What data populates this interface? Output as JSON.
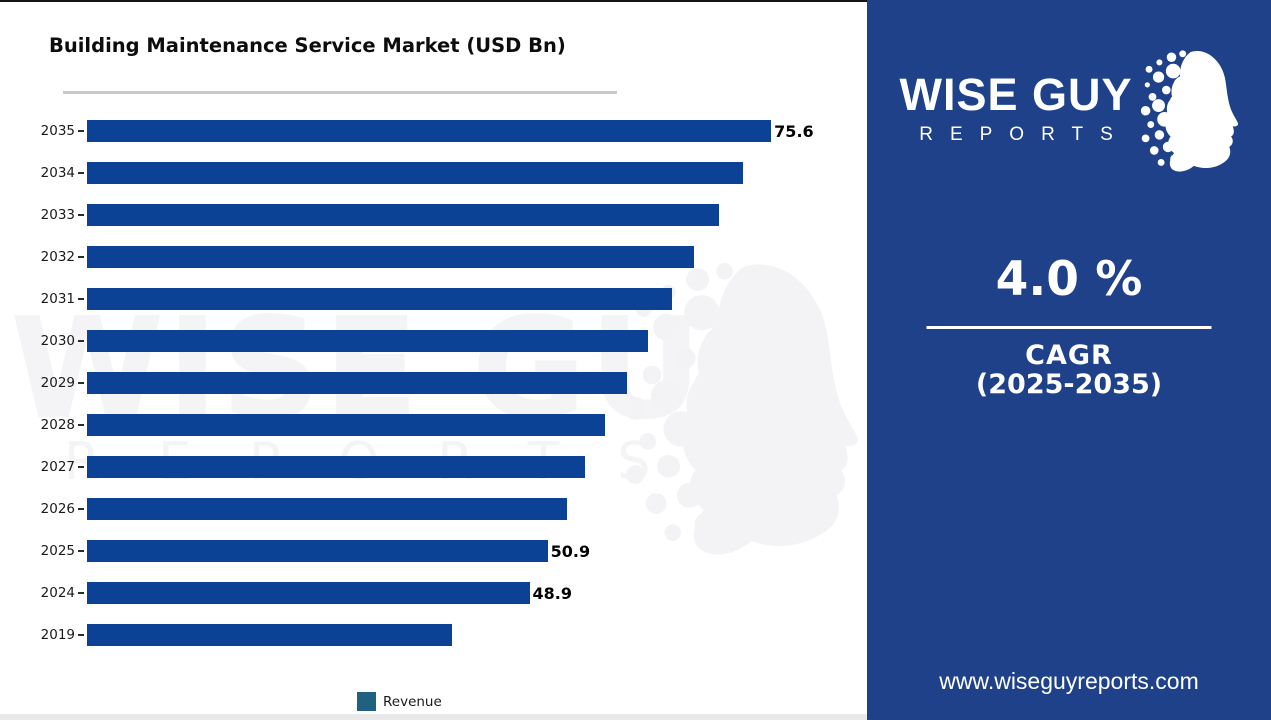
{
  "chart_data": {
    "type": "bar",
    "orientation": "horizontal",
    "title": "Building Maintenance Service Market (USD Bn)",
    "units": "USD Bn",
    "categories": [
      "2035",
      "2034",
      "2033",
      "2032",
      "2031",
      "2030",
      "2029",
      "2028",
      "2027",
      "2026",
      "2025",
      "2024",
      "2019"
    ],
    "values": [
      75.6,
      72.5,
      69.8,
      67.1,
      64.6,
      62.0,
      59.7,
      57.2,
      55.0,
      53.0,
      50.9,
      48.9,
      40.3
    ],
    "annotations": {
      "2035": "75.6",
      "2025": "50.9",
      "2024": "48.9"
    },
    "xlim": [
      0,
      80
    ],
    "grid": false,
    "legend": [
      "Revenue"
    ],
    "legend_position": "bottom",
    "bar_color": "#0b4296",
    "legend_swatch_color": "#206080"
  },
  "chart": {
    "legend_label": "Revenue"
  },
  "watermark": {
    "line1": "WISE GUY",
    "line2": "REPORTS"
  },
  "sidebar": {
    "bg_color": "#1f4189",
    "logo_line1": "WISE GUY",
    "logo_line2": "REPORTS",
    "cagr_value": "4.0 %",
    "cagr_label": "CAGR",
    "cagr_range": "(2025-2035)",
    "website": "www.wiseguyreports.com"
  }
}
